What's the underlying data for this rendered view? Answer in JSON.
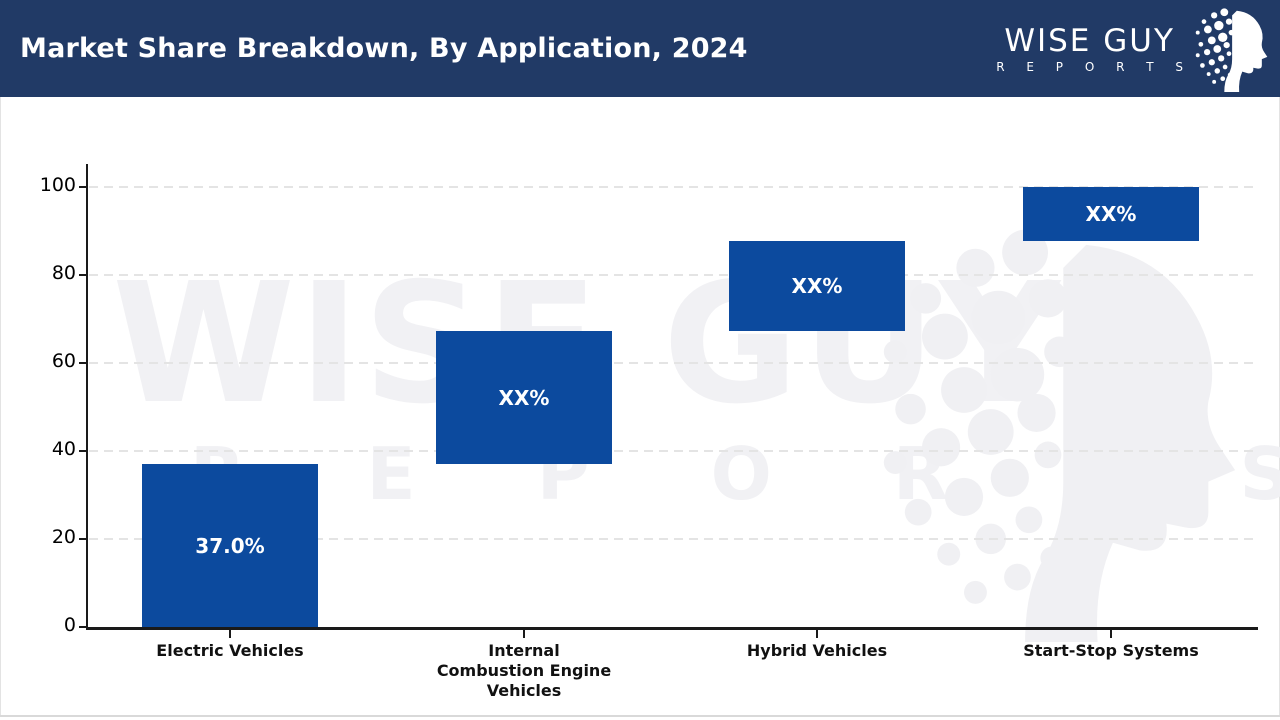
{
  "header": {
    "title": "Market Share Breakdown, By Application, 2024",
    "logo_line1": "WISE GUY",
    "logo_line2": "R E P O R T S",
    "bg_color": "#213a66"
  },
  "watermark": {
    "line1": "WISE GUY",
    "line2": "R E P O R T S"
  },
  "chart_data": {
    "type": "bar",
    "variant": "waterfall",
    "title": "Market Share Breakdown, By Application, 2024",
    "categories": [
      "Electric Vehicles",
      "Internal Combustion Engine Vehicles",
      "Hybrid Vehicles",
      "Start-Stop Systems"
    ],
    "category_label_lines": [
      [
        "Electric Vehicles"
      ],
      [
        "Internal",
        "Combustion Engine",
        "Vehicles"
      ],
      [
        "Hybrid Vehicles"
      ],
      [
        "Start-Stop Systems"
      ]
    ],
    "segments": [
      {
        "category": "Electric Vehicles",
        "start": 0,
        "end": 37.0,
        "label": "37.0%"
      },
      {
        "category": "Internal Combustion Engine Vehicles",
        "start": 37.0,
        "end": 67.3,
        "label": "XX%"
      },
      {
        "category": "Hybrid Vehicles",
        "start": 67.3,
        "end": 87.7,
        "label": "XX%"
      },
      {
        "category": "Start-Stop Systems",
        "start": 87.7,
        "end": 100,
        "label": "XX%"
      }
    ],
    "xlabel": "",
    "ylabel": "",
    "ylim": [
      0,
      100
    ],
    "yticks": [
      0,
      20,
      40,
      60,
      80,
      100
    ],
    "grid": "horizontal dashed",
    "legend": "none",
    "colors": {
      "bar": "#0c4a9e",
      "bar_label": "#ffffff",
      "axis": "#1a1a1a",
      "grid": "#e4e4e4",
      "tick_text": "#000000",
      "watermark": "#f1f1f4"
    }
  }
}
